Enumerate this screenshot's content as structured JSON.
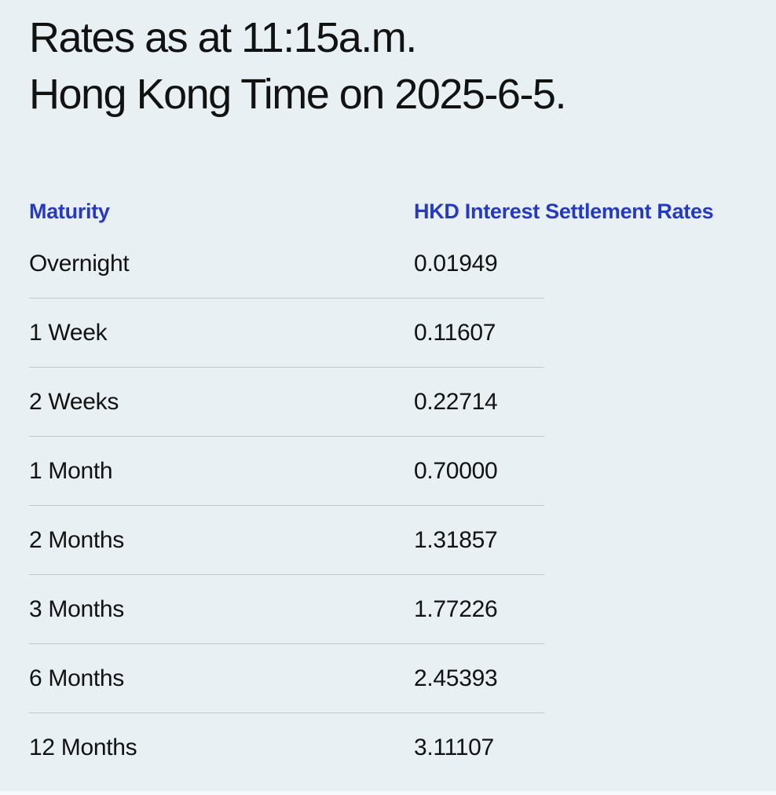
{
  "theme": {
    "bg": "#e8f0f3",
    "accent": "#2639c1",
    "divider": "#b6cdde",
    "text": "#121212"
  },
  "header": {
    "title_line1": "Rates as at 11:15a.m.",
    "title_line2": "Hong Kong Time on 2025-6-5."
  },
  "table": {
    "columns": {
      "maturity": "Maturity",
      "rates": "HKD Interest Settlement Rates"
    },
    "rows": [
      {
        "maturity": "Overnight",
        "rate": "0.01949"
      },
      {
        "maturity": "1 Week",
        "rate": "0.11607"
      },
      {
        "maturity": "2 Weeks",
        "rate": "0.22714"
      },
      {
        "maturity": "1 Month",
        "rate": "0.70000"
      },
      {
        "maturity": "2 Months",
        "rate": "1.31857"
      },
      {
        "maturity": "3 Months",
        "rate": "1.77226"
      },
      {
        "maturity": "6 Months",
        "rate": "2.45393"
      },
      {
        "maturity": "12 Months",
        "rate": "3.11107"
      }
    ]
  }
}
